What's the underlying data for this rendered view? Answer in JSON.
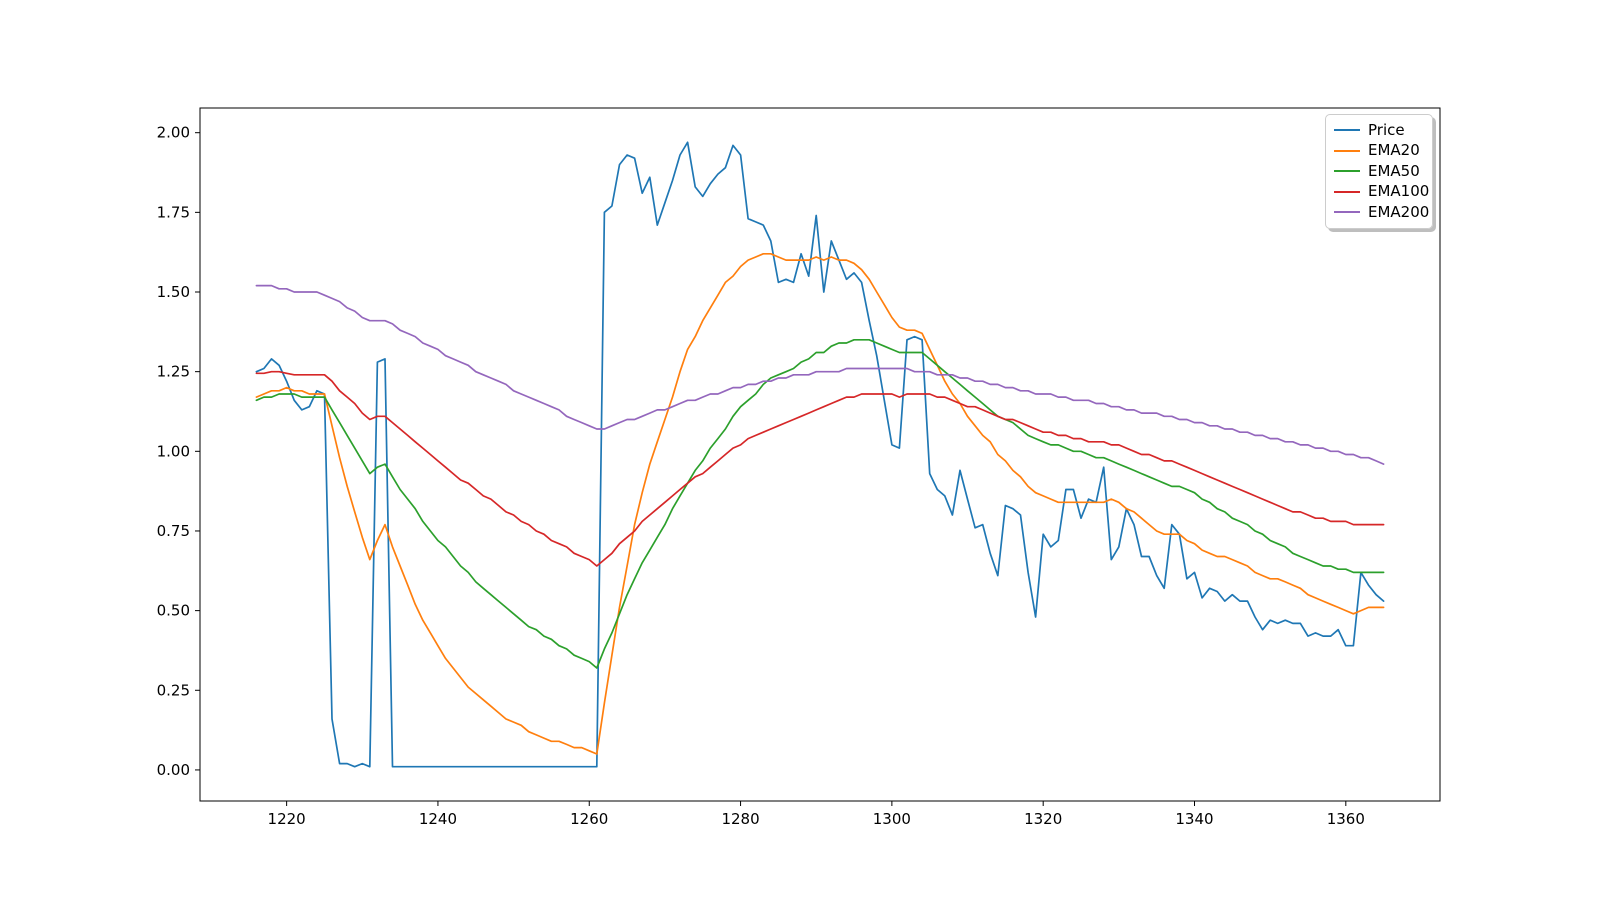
{
  "figure": {
    "background": "#ffffff"
  },
  "chart_data": {
    "type": "line",
    "title": "",
    "xlabel": "",
    "ylabel": "",
    "grid": false,
    "legend_position": "upper right",
    "x_start": 1216,
    "x_step": 1,
    "xlim": [
      1208.55,
      1372.45
    ],
    "ylim": [
      -0.0975,
      2.0775
    ],
    "xticks": [
      1220,
      1240,
      1260,
      1280,
      1300,
      1320,
      1340,
      1360
    ],
    "yticks": [
      0.0,
      0.25,
      0.5,
      0.75,
      1.0,
      1.25,
      1.5,
      1.75,
      2.0
    ],
    "ytick_labels": [
      "0.00",
      "0.25",
      "0.50",
      "0.75",
      "1.00",
      "1.25",
      "1.50",
      "1.75",
      "2.00"
    ],
    "series": [
      {
        "name": "Price",
        "color": "#1f77b4",
        "values": [
          1.25,
          1.26,
          1.29,
          1.27,
          1.22,
          1.16,
          1.13,
          1.14,
          1.19,
          1.18,
          0.16,
          0.02,
          0.02,
          0.01,
          0.02,
          0.01,
          1.28,
          1.29,
          0.01,
          0.01,
          0.01,
          0.01,
          0.01,
          0.01,
          0.01,
          0.01,
          0.01,
          0.01,
          0.01,
          0.01,
          0.01,
          0.01,
          0.01,
          0.01,
          0.01,
          0.01,
          0.01,
          0.01,
          0.01,
          0.01,
          0.01,
          0.01,
          0.01,
          0.01,
          0.01,
          0.01,
          1.75,
          1.77,
          1.9,
          1.93,
          1.92,
          1.81,
          1.86,
          1.71,
          1.78,
          1.85,
          1.93,
          1.97,
          1.83,
          1.8,
          1.84,
          1.87,
          1.89,
          1.96,
          1.93,
          1.73,
          1.72,
          1.71,
          1.66,
          1.53,
          1.54,
          1.53,
          1.62,
          1.55,
          1.74,
          1.5,
          1.66,
          1.6,
          1.54,
          1.56,
          1.53,
          1.41,
          1.3,
          1.16,
          1.02,
          1.01,
          1.35,
          1.36,
          1.35,
          0.93,
          0.88,
          0.86,
          0.8,
          0.94,
          0.85,
          0.76,
          0.77,
          0.68,
          0.61,
          0.83,
          0.82,
          0.8,
          0.62,
          0.48,
          0.74,
          0.7,
          0.72,
          0.88,
          0.88,
          0.79,
          0.85,
          0.84,
          0.95,
          0.66,
          0.7,
          0.82,
          0.77,
          0.67,
          0.67,
          0.61,
          0.57,
          0.77,
          0.74,
          0.6,
          0.62,
          0.54,
          0.57,
          0.56,
          0.53,
          0.55,
          0.53,
          0.53,
          0.48,
          0.44,
          0.47,
          0.46,
          0.47,
          0.46,
          0.46,
          0.42,
          0.43,
          0.42,
          0.42,
          0.44,
          0.39,
          0.39,
          0.62,
          0.58,
          0.55,
          0.53
        ]
      },
      {
        "name": "EMA20",
        "color": "#ff7f0e",
        "values": [
          1.17,
          1.18,
          1.19,
          1.19,
          1.2,
          1.19,
          1.19,
          1.18,
          1.18,
          1.18,
          1.08,
          0.98,
          0.89,
          0.81,
          0.73,
          0.66,
          0.72,
          0.77,
          0.7,
          0.64,
          0.58,
          0.52,
          0.47,
          0.43,
          0.39,
          0.35,
          0.32,
          0.29,
          0.26,
          0.24,
          0.22,
          0.2,
          0.18,
          0.16,
          0.15,
          0.14,
          0.12,
          0.11,
          0.1,
          0.09,
          0.09,
          0.08,
          0.07,
          0.07,
          0.06,
          0.05,
          0.21,
          0.36,
          0.51,
          0.64,
          0.77,
          0.87,
          0.96,
          1.03,
          1.1,
          1.17,
          1.25,
          1.32,
          1.36,
          1.41,
          1.45,
          1.49,
          1.53,
          1.55,
          1.58,
          1.6,
          1.61,
          1.62,
          1.62,
          1.61,
          1.6,
          1.6,
          1.6,
          1.6,
          1.61,
          1.6,
          1.61,
          1.6,
          1.6,
          1.59,
          1.57,
          1.54,
          1.5,
          1.46,
          1.42,
          1.39,
          1.38,
          1.38,
          1.37,
          1.32,
          1.27,
          1.22,
          1.18,
          1.15,
          1.11,
          1.08,
          1.05,
          1.03,
          0.99,
          0.97,
          0.94,
          0.92,
          0.89,
          0.87,
          0.86,
          0.85,
          0.84,
          0.84,
          0.84,
          0.84,
          0.84,
          0.84,
          0.84,
          0.85,
          0.84,
          0.82,
          0.81,
          0.79,
          0.77,
          0.75,
          0.74,
          0.74,
          0.74,
          0.72,
          0.71,
          0.69,
          0.68,
          0.67,
          0.67,
          0.66,
          0.65,
          0.64,
          0.62,
          0.61,
          0.6,
          0.6,
          0.59,
          0.58,
          0.57,
          0.55,
          0.54,
          0.53,
          0.52,
          0.51,
          0.5,
          0.49,
          0.5,
          0.51,
          0.51,
          0.51
        ]
      },
      {
        "name": "EMA50",
        "color": "#2ca02c",
        "values": [
          1.16,
          1.17,
          1.17,
          1.18,
          1.18,
          1.18,
          1.17,
          1.17,
          1.17,
          1.17,
          1.13,
          1.09,
          1.05,
          1.01,
          0.97,
          0.93,
          0.95,
          0.96,
          0.92,
          0.88,
          0.85,
          0.82,
          0.78,
          0.75,
          0.72,
          0.7,
          0.67,
          0.64,
          0.62,
          0.59,
          0.57,
          0.55,
          0.53,
          0.51,
          0.49,
          0.47,
          0.45,
          0.44,
          0.42,
          0.41,
          0.39,
          0.38,
          0.36,
          0.35,
          0.34,
          0.32,
          0.38,
          0.43,
          0.49,
          0.55,
          0.6,
          0.65,
          0.69,
          0.73,
          0.77,
          0.82,
          0.86,
          0.9,
          0.94,
          0.97,
          1.01,
          1.04,
          1.07,
          1.11,
          1.14,
          1.16,
          1.18,
          1.21,
          1.23,
          1.24,
          1.25,
          1.26,
          1.28,
          1.29,
          1.31,
          1.31,
          1.33,
          1.34,
          1.34,
          1.35,
          1.35,
          1.35,
          1.34,
          1.33,
          1.32,
          1.31,
          1.31,
          1.31,
          1.31,
          1.29,
          1.27,
          1.25,
          1.23,
          1.21,
          1.19,
          1.17,
          1.15,
          1.13,
          1.11,
          1.1,
          1.09,
          1.07,
          1.05,
          1.04,
          1.03,
          1.02,
          1.02,
          1.01,
          1.0,
          1.0,
          0.99,
          0.98,
          0.98,
          0.97,
          0.96,
          0.95,
          0.94,
          0.93,
          0.92,
          0.91,
          0.9,
          0.89,
          0.89,
          0.88,
          0.87,
          0.85,
          0.84,
          0.82,
          0.81,
          0.79,
          0.78,
          0.77,
          0.75,
          0.74,
          0.72,
          0.71,
          0.7,
          0.68,
          0.67,
          0.66,
          0.65,
          0.64,
          0.64,
          0.63,
          0.63,
          0.62,
          0.62,
          0.62,
          0.62,
          0.62
        ]
      },
      {
        "name": "EMA100",
        "color": "#d62728",
        "values": [
          1.245,
          1.245,
          1.25,
          1.25,
          1.245,
          1.24,
          1.24,
          1.24,
          1.24,
          1.24,
          1.22,
          1.19,
          1.17,
          1.15,
          1.12,
          1.1,
          1.11,
          1.11,
          1.09,
          1.07,
          1.05,
          1.03,
          1.01,
          0.99,
          0.97,
          0.95,
          0.93,
          0.91,
          0.9,
          0.88,
          0.86,
          0.85,
          0.83,
          0.81,
          0.8,
          0.78,
          0.77,
          0.75,
          0.74,
          0.72,
          0.71,
          0.7,
          0.68,
          0.67,
          0.66,
          0.64,
          0.66,
          0.68,
          0.71,
          0.73,
          0.75,
          0.78,
          0.8,
          0.82,
          0.84,
          0.86,
          0.88,
          0.9,
          0.92,
          0.93,
          0.95,
          0.97,
          0.99,
          1.01,
          1.02,
          1.04,
          1.05,
          1.06,
          1.07,
          1.08,
          1.09,
          1.1,
          1.11,
          1.12,
          1.13,
          1.14,
          1.15,
          1.16,
          1.17,
          1.17,
          1.18,
          1.18,
          1.18,
          1.18,
          1.18,
          1.17,
          1.18,
          1.18,
          1.18,
          1.18,
          1.17,
          1.17,
          1.16,
          1.15,
          1.14,
          1.14,
          1.13,
          1.12,
          1.11,
          1.1,
          1.1,
          1.09,
          1.08,
          1.07,
          1.06,
          1.06,
          1.05,
          1.05,
          1.04,
          1.04,
          1.03,
          1.03,
          1.03,
          1.02,
          1.02,
          1.01,
          1.0,
          0.99,
          0.99,
          0.98,
          0.97,
          0.97,
          0.96,
          0.95,
          0.94,
          0.93,
          0.92,
          0.91,
          0.9,
          0.89,
          0.88,
          0.87,
          0.86,
          0.85,
          0.84,
          0.83,
          0.82,
          0.81,
          0.81,
          0.8,
          0.79,
          0.79,
          0.78,
          0.78,
          0.78,
          0.77,
          0.77,
          0.77,
          0.77,
          0.77
        ]
      },
      {
        "name": "EMA200",
        "color": "#9467bd",
        "values": [
          1.52,
          1.52,
          1.52,
          1.51,
          1.51,
          1.5,
          1.5,
          1.5,
          1.5,
          1.49,
          1.48,
          1.47,
          1.45,
          1.44,
          1.42,
          1.41,
          1.41,
          1.41,
          1.4,
          1.38,
          1.37,
          1.36,
          1.34,
          1.33,
          1.32,
          1.3,
          1.29,
          1.28,
          1.27,
          1.25,
          1.24,
          1.23,
          1.22,
          1.21,
          1.19,
          1.18,
          1.17,
          1.16,
          1.15,
          1.14,
          1.13,
          1.11,
          1.1,
          1.09,
          1.08,
          1.07,
          1.07,
          1.08,
          1.09,
          1.1,
          1.1,
          1.11,
          1.12,
          1.13,
          1.13,
          1.14,
          1.15,
          1.16,
          1.16,
          1.17,
          1.18,
          1.18,
          1.19,
          1.2,
          1.2,
          1.21,
          1.21,
          1.22,
          1.22,
          1.23,
          1.23,
          1.24,
          1.24,
          1.24,
          1.25,
          1.25,
          1.25,
          1.25,
          1.26,
          1.26,
          1.26,
          1.26,
          1.26,
          1.26,
          1.26,
          1.26,
          1.26,
          1.25,
          1.25,
          1.25,
          1.24,
          1.24,
          1.24,
          1.23,
          1.23,
          1.22,
          1.22,
          1.21,
          1.21,
          1.2,
          1.2,
          1.19,
          1.19,
          1.18,
          1.18,
          1.18,
          1.17,
          1.17,
          1.16,
          1.16,
          1.16,
          1.15,
          1.15,
          1.14,
          1.14,
          1.13,
          1.13,
          1.12,
          1.12,
          1.12,
          1.11,
          1.11,
          1.1,
          1.1,
          1.09,
          1.09,
          1.08,
          1.08,
          1.07,
          1.07,
          1.06,
          1.06,
          1.05,
          1.05,
          1.04,
          1.04,
          1.03,
          1.03,
          1.02,
          1.02,
          1.01,
          1.01,
          1.0,
          1.0,
          0.99,
          0.99,
          0.98,
          0.98,
          0.97,
          0.96
        ]
      }
    ]
  }
}
